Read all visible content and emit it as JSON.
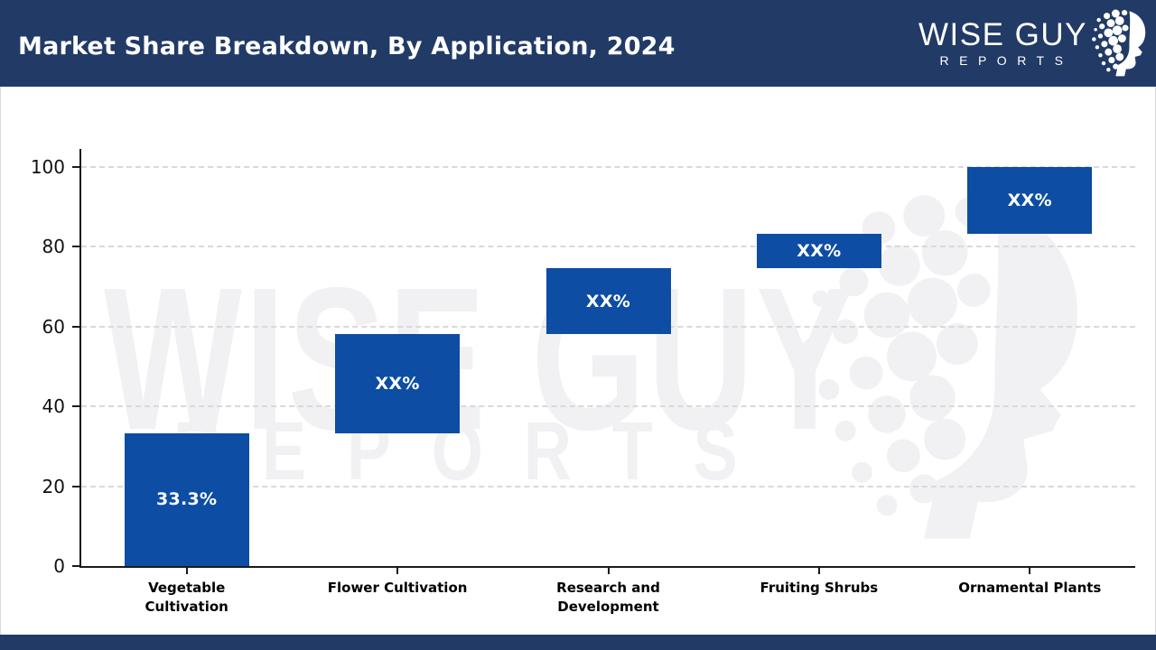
{
  "header": {
    "title": "Market Share Breakdown, By Application, 2024",
    "logo": {
      "line1": "WISE GUY",
      "line2": "REPORTS"
    }
  },
  "watermark": {
    "line1": "WISE GUY",
    "line2": "REPORTS"
  },
  "colors": {
    "header_bg": "#213a66",
    "bar": "#0d4da3",
    "grid": "#d9d9d9",
    "watermark": "#f1f1f3",
    "axis": "#1a1a1a",
    "bar_label": "#ffffff",
    "title_text": "#ffffff"
  },
  "chart_data": {
    "type": "bar",
    "subtype": "waterfall",
    "title": "Market Share Breakdown, By Application, 2024",
    "categories": [
      "Vegetable\nCultivation",
      "Flower Cultivation",
      "Research and\nDevelopment",
      "Fruiting Shrubs",
      "Ornamental Plants"
    ],
    "segments": [
      {
        "category": "Vegetable Cultivation",
        "start": 0,
        "end": 33.3,
        "value": 33.3,
        "label": "33.3%"
      },
      {
        "category": "Flower Cultivation",
        "start": 33.3,
        "end": 58.1,
        "value": 24.8,
        "label": "XX%"
      },
      {
        "category": "Research and Development",
        "start": 58.1,
        "end": 74.6,
        "value": 16.5,
        "label": "XX%"
      },
      {
        "category": "Fruiting Shrubs",
        "start": 74.6,
        "end": 83.2,
        "value": 8.6,
        "label": "XX%"
      },
      {
        "category": "Ornamental Plants",
        "start": 83.2,
        "end": 100,
        "value": 16.8,
        "label": "XX%"
      }
    ],
    "xlabel": "",
    "ylabel": "",
    "ylim": [
      0,
      100
    ],
    "yticks": [
      0,
      20,
      40,
      60,
      80,
      100
    ],
    "grid": "horizontal-dashed",
    "legend": "none",
    "bar_color": "#0d4da3"
  }
}
